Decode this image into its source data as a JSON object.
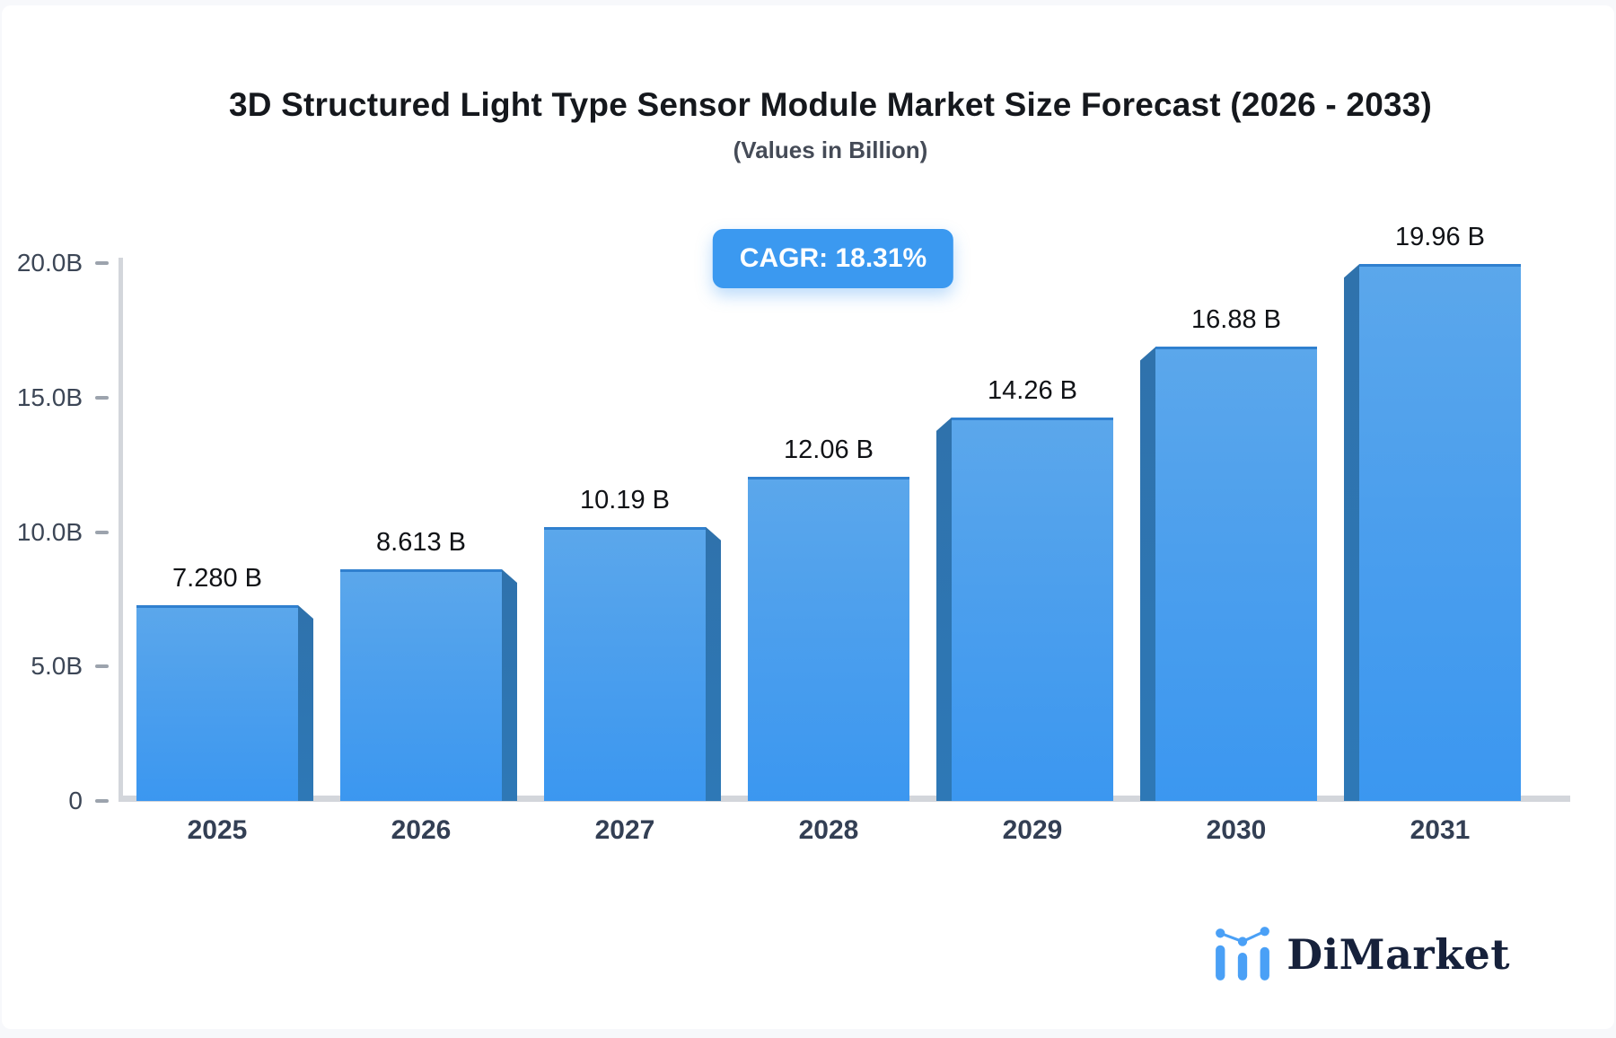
{
  "header": {
    "title": "3D Structured Light Type Sensor Module Market Size Forecast (2026 - 2033)",
    "subtitle": "(Values in Billion)"
  },
  "badge": {
    "label": "CAGR: 18.31%"
  },
  "chart_data": {
    "type": "bar",
    "title": "3D Structured Light Type Sensor Module Market Size Forecast (2026 - 2033)",
    "subtitle": "(Values in Billion)",
    "cagr_annotation": "CAGR: 18.31%",
    "categories": [
      "2025",
      "2026",
      "2027",
      "2028",
      "2029",
      "2030",
      "2031"
    ],
    "values": [
      7.28,
      8.613,
      10.19,
      12.06,
      14.26,
      16.88,
      19.96
    ],
    "value_labels": [
      "7.280 B",
      "8.613 B",
      "10.19 B",
      "12.06 B",
      "14.26 B",
      "16.88 B",
      "19.96 B"
    ],
    "xlabel": "",
    "ylabel": "",
    "ylim": [
      0,
      20
    ],
    "y_ticks": [
      {
        "label": "20.0B",
        "value": 20
      },
      {
        "label": "15.0B",
        "value": 15
      },
      {
        "label": "10.0B",
        "value": 10
      },
      {
        "label": "5.0B",
        "value": 5
      },
      {
        "label": "0",
        "value": 0
      }
    ],
    "grid": false,
    "legend": "none",
    "bar_style": "3d-bevel",
    "bar_face_color_top": "#5BA7EB",
    "bar_face_color_bottom": "#3B97F0",
    "bar_side_color": "#2E74B0"
  },
  "logo": {
    "text": "DiMarket",
    "icon": "mini-bar-chart-icon",
    "text_color": "#16213B",
    "icon_color": "#4AA0F6"
  },
  "colors": {
    "accent": "#3B99F0",
    "axis_line": "#D3D6DB",
    "tick_dash": "#9CA3AD",
    "card_background": "#FFFFFF",
    "page_background": "#F7F8FB"
  }
}
